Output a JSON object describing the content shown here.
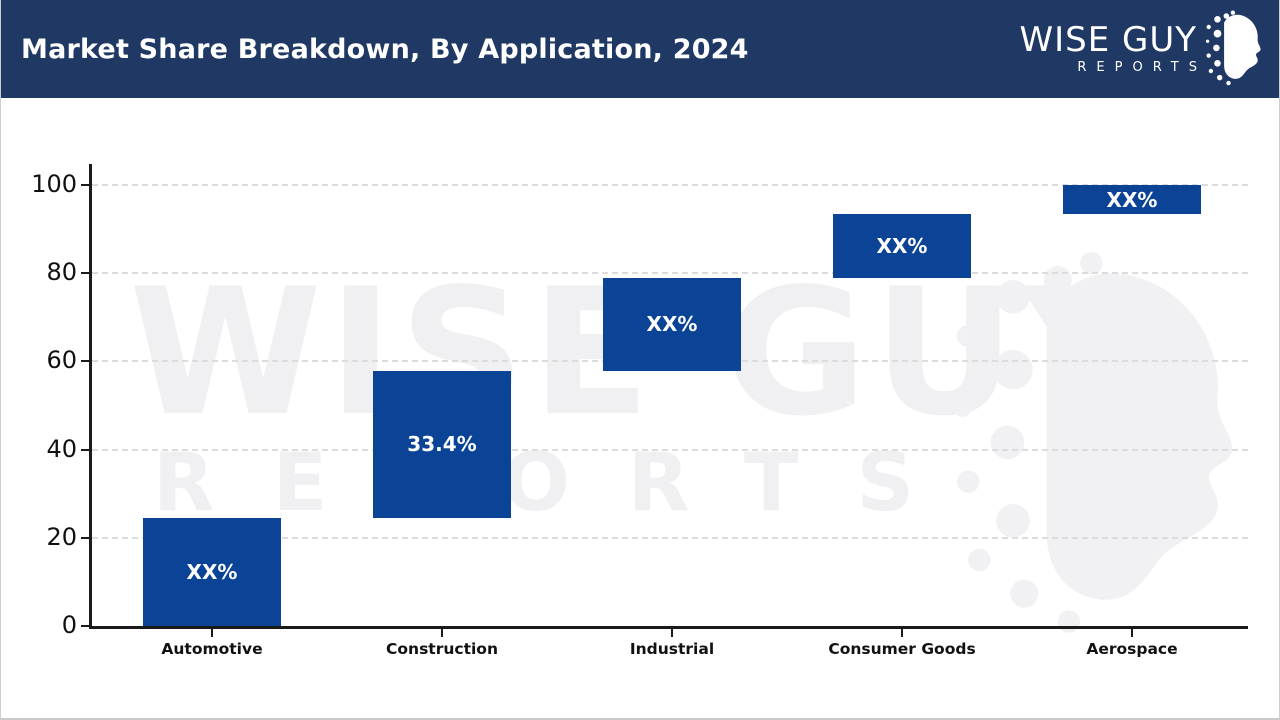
{
  "header": {
    "title": "Market Share Breakdown, By Application, 2024",
    "logo": {
      "wordmark": "WISE GUY",
      "subtext": "REPORTS"
    }
  },
  "watermark": {
    "wordmark": "WISE GUY",
    "subtext": "REPORTS"
  },
  "chart_data": {
    "type": "bar",
    "variant": "floating-waterfall",
    "title": "Market Share Breakdown, By Application, 2024",
    "categories": [
      "Automotive",
      "Construction",
      "Industrial",
      "Consumer Goods",
      "Aerospace"
    ],
    "segments": [
      {
        "category": "Automotive",
        "start": 0,
        "end": 24.5,
        "label": "XX%"
      },
      {
        "category": "Construction",
        "start": 24.5,
        "end": 57.9,
        "label": "33.4%"
      },
      {
        "category": "Industrial",
        "start": 57.9,
        "end": 78.9,
        "label": "XX%"
      },
      {
        "category": "Consumer Goods",
        "start": 78.9,
        "end": 93.4,
        "label": "XX%"
      },
      {
        "category": "Aerospace",
        "start": 93.4,
        "end": 100,
        "label": "XX%"
      }
    ],
    "yticks": [
      0,
      20,
      40,
      60,
      80,
      100
    ],
    "ylim": [
      0,
      105
    ],
    "xlabel": "",
    "ylabel": "",
    "grid": "horizontal-dashed",
    "legend": "none",
    "colors": {
      "bar": "#0b4396",
      "bar_label": "#ffffff",
      "grid": "#dcdcdc",
      "axis": "#1a1a1a",
      "header_bg": "#1f3864",
      "watermark": "#f0f0f2"
    }
  }
}
